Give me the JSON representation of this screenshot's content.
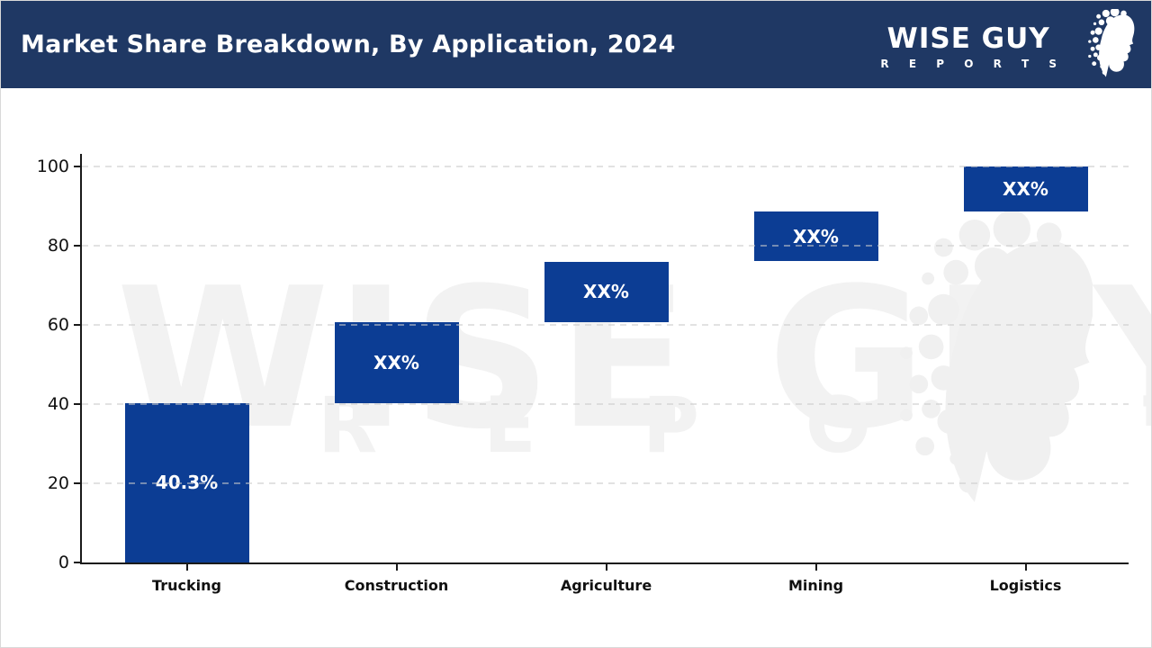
{
  "header": {
    "title": "Market Share Breakdown, By Application, 2024",
    "logo": {
      "line1": "WISE GUY",
      "line2": "R E P O R T S"
    }
  },
  "watermark": {
    "line1": "WISE GUY",
    "line2": "R E P O R T S"
  },
  "colors": {
    "header_bg": "#1f3864",
    "bar": "#0c3d94",
    "bar_label": "#ffffff",
    "axis": "#1a1a1a",
    "gridline": "#d8d8d8",
    "watermark": "#f2f2f2"
  },
  "chart_data": {
    "type": "bar",
    "subtype": "waterfall",
    "title": "Market Share Breakdown, By Application, 2024",
    "categories": [
      "Trucking",
      "Construction",
      "Agriculture",
      "Mining",
      "Logistics"
    ],
    "bars": [
      {
        "category": "Trucking",
        "start": 0,
        "end": 40.3,
        "label": "40.3%"
      },
      {
        "category": "Construction",
        "start": 40.3,
        "end": 60.7,
        "label": "XX%"
      },
      {
        "category": "Agriculture",
        "start": 60.7,
        "end": 76.0,
        "label": "XX%"
      },
      {
        "category": "Mining",
        "start": 76.0,
        "end": 88.5,
        "label": "XX%"
      },
      {
        "category": "Logistics",
        "start": 88.5,
        "end": 100,
        "label": "XX%"
      }
    ],
    "yticks": [
      0,
      20,
      40,
      60,
      80,
      100
    ],
    "ylim": [
      0,
      103.6
    ],
    "xlabel": "",
    "ylabel": "",
    "grid": "horizontal-dashed",
    "legend": null
  }
}
